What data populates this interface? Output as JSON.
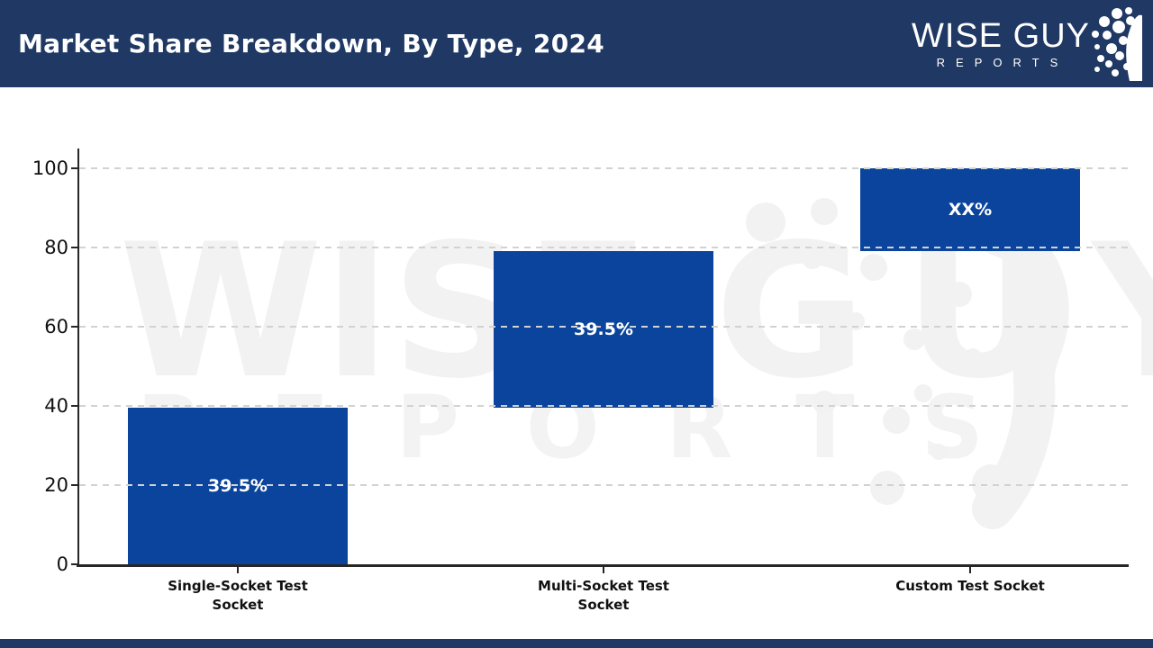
{
  "header": {
    "title": "Market Share Breakdown, By Type, 2024",
    "logo": {
      "line1": "WISE GUY",
      "line2": "REPORTS"
    },
    "bg_color": "#1f3864"
  },
  "watermark": {
    "line1_part1": "WISE ",
    "line1_part2": "GUY",
    "line2": "REPORTS"
  },
  "chart_data": {
    "type": "bar",
    "subtype": "waterfall",
    "title": "Market Share Breakdown, By Type, 2024",
    "categories": [
      "Single-Socket Test Socket",
      "Multi-Socket Test Socket",
      "Custom Test Socket"
    ],
    "values": [
      39.5,
      39.5,
      21
    ],
    "cumulative_start": [
      0,
      39.5,
      79
    ],
    "cumulative_end": [
      39.5,
      79,
      100
    ],
    "bar_labels": [
      "39.5%",
      "39.5%",
      "XX%"
    ],
    "xlabel": "",
    "ylabel": "",
    "ylim": [
      0,
      105
    ],
    "yticks": [
      0,
      20,
      40,
      60,
      80,
      100
    ],
    "grid": "horizontal-dashed",
    "legend": "none",
    "bar_color": "#0a449c",
    "bar_label_color": "#ffffff",
    "grid_color": "#d2d2d2",
    "axis_color": "#262626"
  }
}
